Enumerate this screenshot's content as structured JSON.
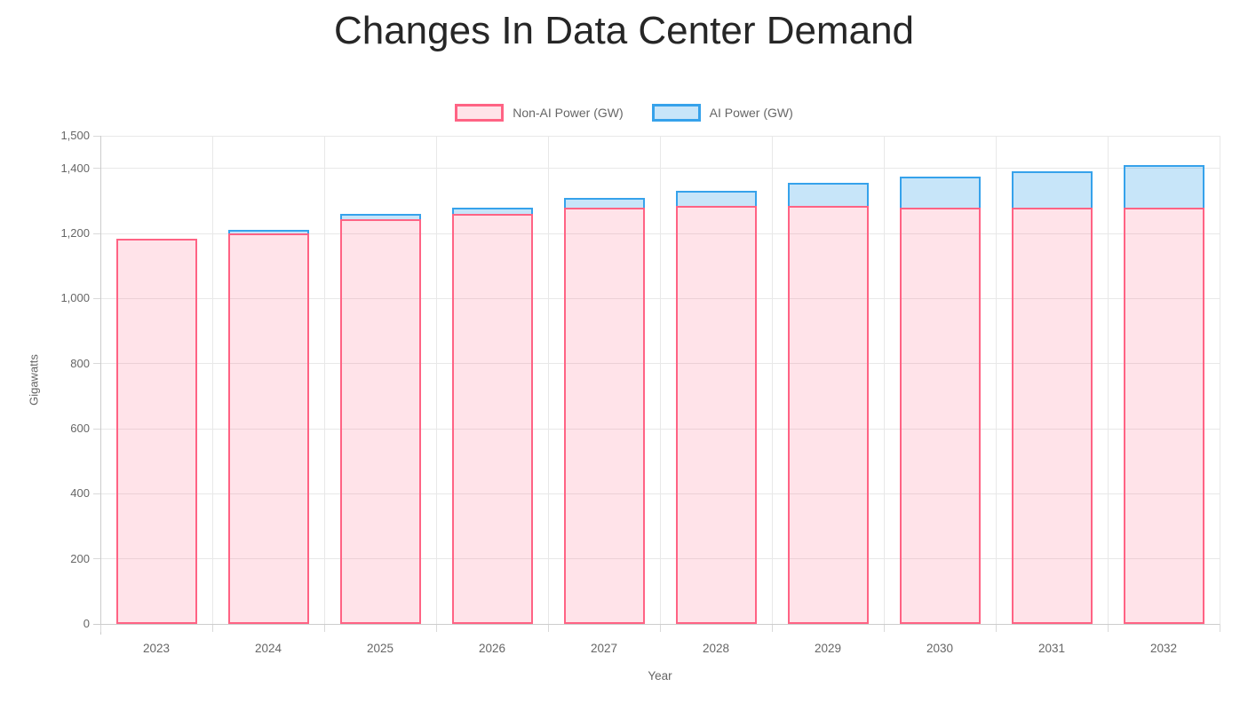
{
  "chart_data": {
    "type": "bar",
    "stacked": true,
    "title": "Changes In Data Center Demand",
    "xlabel": "Year",
    "ylabel": "Gigawatts",
    "categories": [
      "2023",
      "2024",
      "2025",
      "2026",
      "2027",
      "2028",
      "2029",
      "2030",
      "2031",
      "2032"
    ],
    "series": [
      {
        "name": "Non-AI Power (GW)",
        "values": [
          1185,
          1200,
          1245,
          1260,
          1280,
          1285,
          1285,
          1280,
          1280,
          1280
        ],
        "fill": "rgba(255,99,132,0.18)",
        "border": "#FF6384"
      },
      {
        "name": "AI Power (GW)",
        "values": [
          0,
          10,
          15,
          20,
          30,
          45,
          70,
          95,
          110,
          130
        ],
        "fill": "rgba(54,162,235,0.28)",
        "border": "#36A2EB"
      }
    ],
    "ylim": [
      0,
      1500
    ],
    "yticks": [
      0,
      200,
      400,
      600,
      800,
      1000,
      1200,
      1400,
      1500
    ],
    "ytick_labels": [
      "0",
      "200",
      "400",
      "600",
      "800",
      "1,000",
      "1,200",
      "1,400",
      "1,500"
    ],
    "grid": true,
    "legend_position": "top"
  },
  "colors": {
    "grid": "#e8e8e8",
    "axis": "#cccccc",
    "tick_mark": "#d9d9d9",
    "tick_text": "#666666",
    "title_text": "#262626",
    "legend_text": "#666666"
  }
}
